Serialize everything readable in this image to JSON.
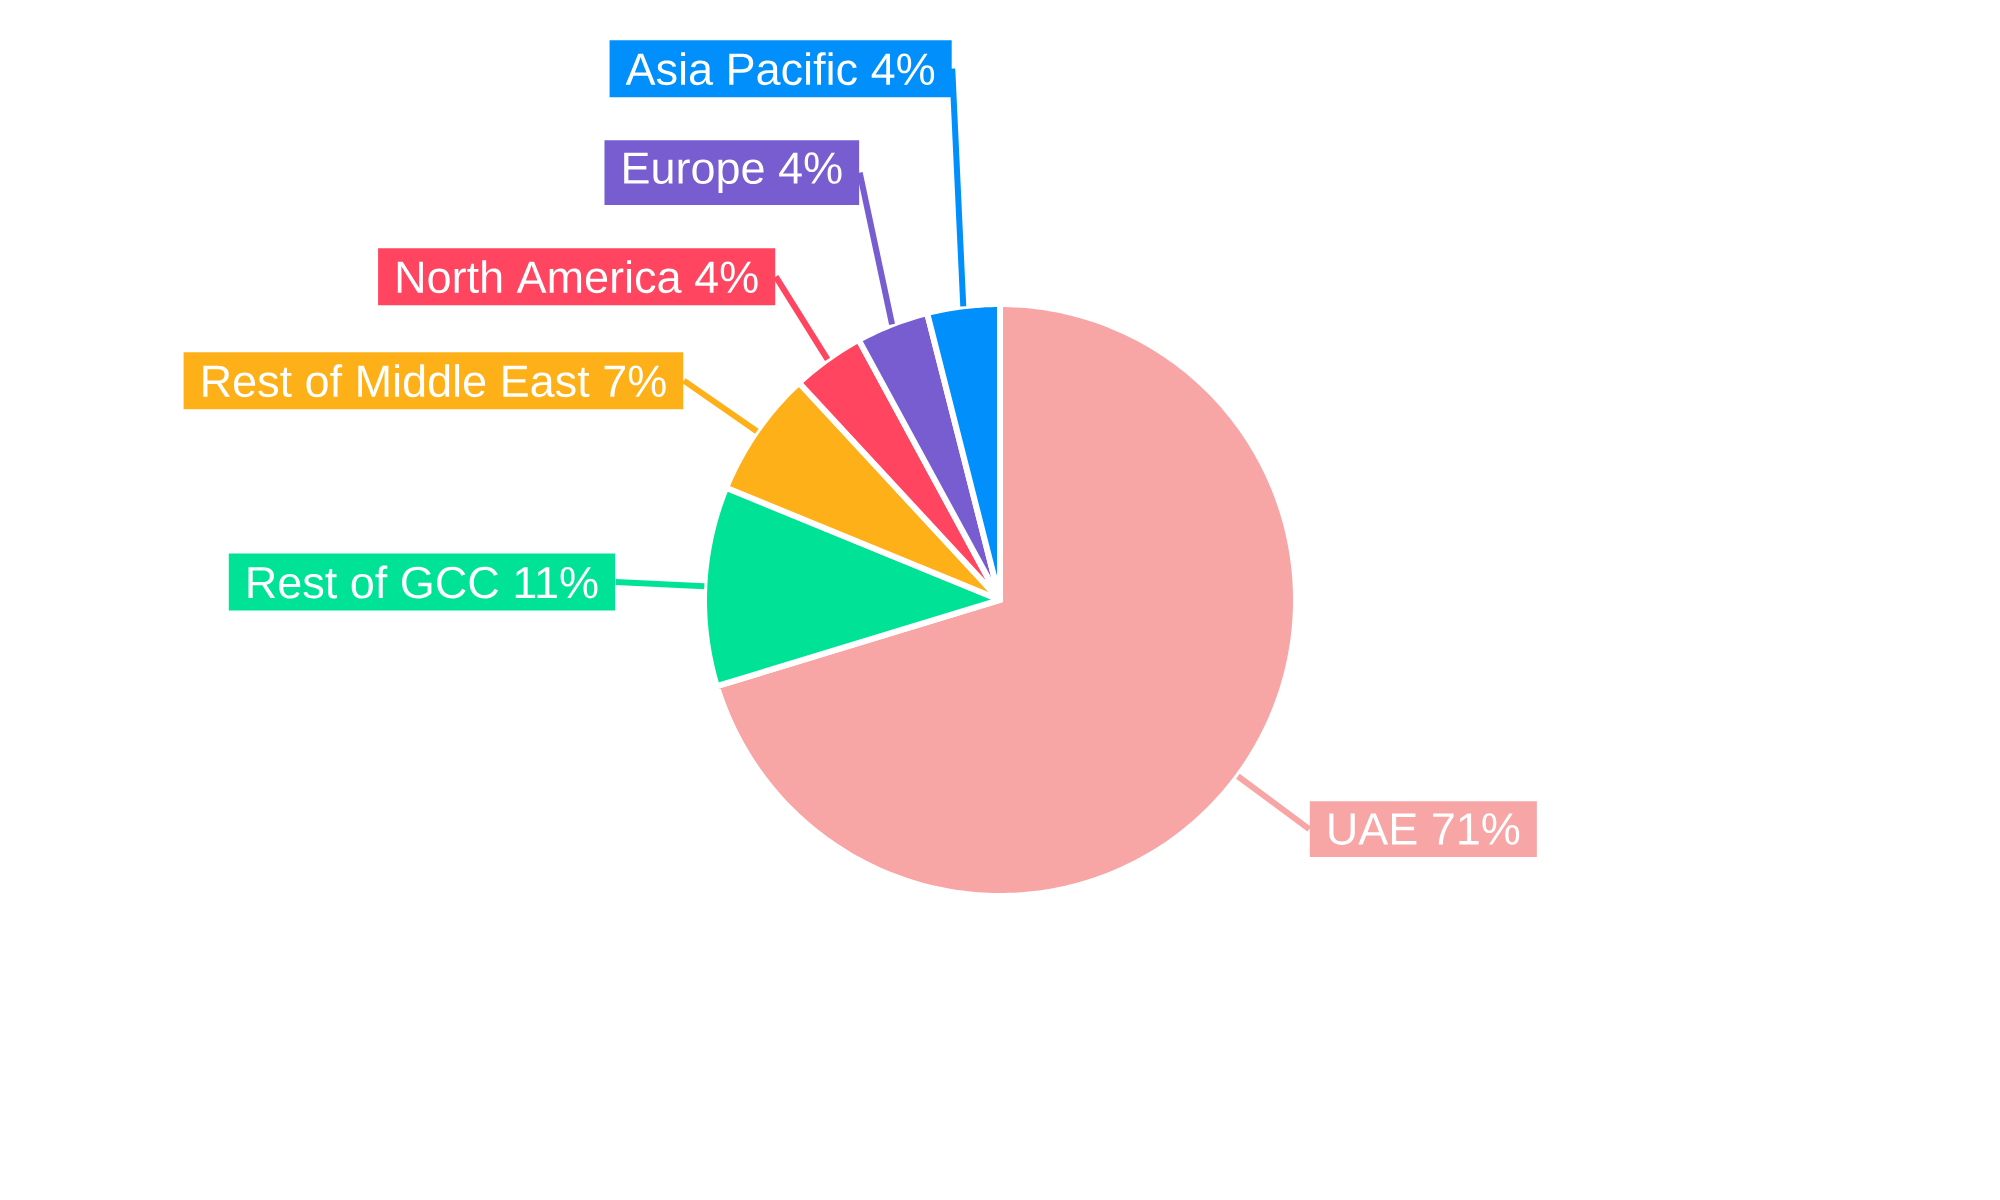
{
  "chart_data": {
    "type": "pie",
    "categories": [
      "UAE",
      "Rest of GCC",
      "Rest of Middle East",
      "North America",
      "Europe",
      "Asia Pacific"
    ],
    "values": [
      71,
      11,
      7,
      4,
      4,
      4
    ],
    "value_labels": [
      "71%",
      "11%",
      "7%",
      "4%",
      "4%",
      "4%"
    ],
    "colors": [
      "#f8a5a6",
      "#00e396",
      "#feb019",
      "#ff4560",
      "#775dd0",
      "#008ffb"
    ]
  }
}
